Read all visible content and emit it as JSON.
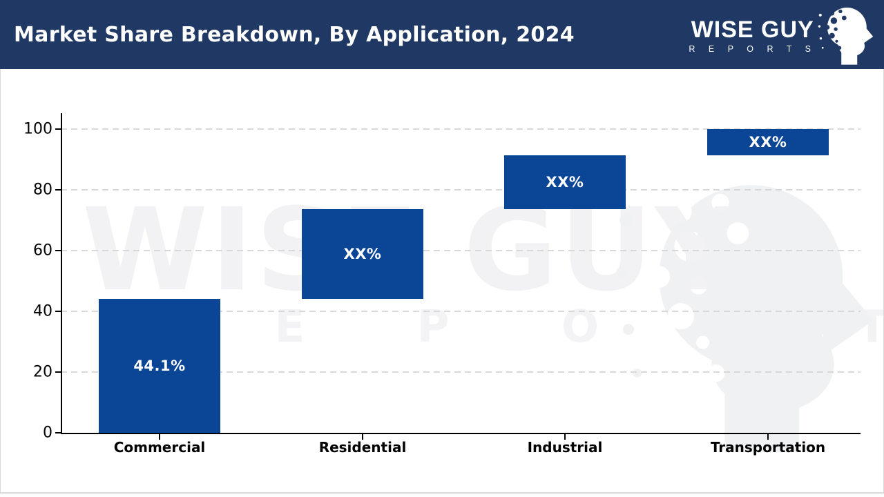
{
  "header": {
    "title": "Market Share Breakdown, By Application, 2024",
    "logo": {
      "line1": "WISE GUY",
      "line2": "R E P O R T S"
    }
  },
  "watermark": {
    "line1": "WISE GUY",
    "line2": "R E P O R T S"
  },
  "chart_data": {
    "type": "bar",
    "variant": "waterfall",
    "title": "Market Share Breakdown, By Application, 2024",
    "categories": [
      "Commercial",
      "Residential",
      "Industrial",
      "Transportation"
    ],
    "bars": [
      {
        "category": "Commercial",
        "label": "44.1%",
        "start": 0,
        "end": 44.1,
        "value": 44.1
      },
      {
        "category": "Residential",
        "label": "XX%",
        "start": 44.1,
        "end": 73.6,
        "value_estimate": 29.5
      },
      {
        "category": "Industrial",
        "label": "XX%",
        "start": 73.6,
        "end": 91.3,
        "value_estimate": 17.7
      },
      {
        "category": "Transportation",
        "label": "XX%",
        "start": 91.3,
        "end": 100.0,
        "value_estimate": 8.7
      }
    ],
    "yticks": [
      0,
      20,
      40,
      60,
      80,
      100
    ],
    "ylim": [
      0,
      105
    ],
    "xlabel": "",
    "ylabel": "",
    "grid": "horizontal-dashed",
    "legend": "none",
    "colors": {
      "bar": "#0b4596",
      "bar_label": "#ffffff",
      "header_bg": "#203864",
      "grid": "#d8d8d8",
      "axis": "#000000",
      "watermark": "#f2f2f4"
    }
  }
}
